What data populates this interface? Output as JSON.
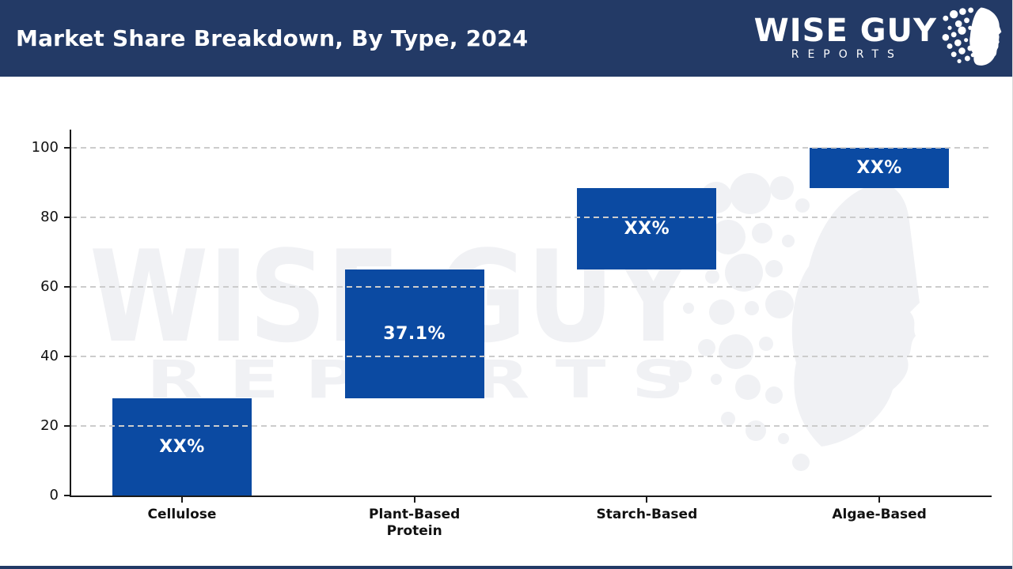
{
  "header": {
    "title": "Market Share Breakdown, By Type, 2024",
    "bg_color": "#233A66",
    "logo": {
      "line1": "WISE GUY",
      "line2": "REPORTS"
    }
  },
  "watermark": {
    "line1": "WISE GUY",
    "line2": "R E P O R T S",
    "color": "#f0f1f4"
  },
  "chart_data": {
    "type": "bar",
    "subtype": "waterfall",
    "title": "Market Share Breakdown, By Type, 2024",
    "categories": [
      "Cellulose",
      "Plant-Based\nProtein",
      "Starch-Based",
      "Algae-Based"
    ],
    "segments": [
      {
        "category": "Cellulose",
        "start": 0,
        "end": 28.0,
        "value_label": "XX%"
      },
      {
        "category": "Plant-Based Protein",
        "start": 28.0,
        "end": 65.1,
        "value_label": "37.1%"
      },
      {
        "category": "Starch-Based",
        "start": 65.1,
        "end": 88.3,
        "value_label": "XX%"
      },
      {
        "category": "Algae-Based",
        "start": 88.3,
        "end": 100.0,
        "value_label": "XX%"
      }
    ],
    "xlabel": "",
    "ylabel": "",
    "yticks": [
      0,
      20,
      40,
      60,
      80,
      100
    ],
    "ylim": [
      0,
      105
    ],
    "grid": "horizontal dashed, drawn over bars",
    "legend": "none",
    "bar_color": "#0B4AA2",
    "gridline_color": "#cccccc",
    "axis_color": "#1a1a1a"
  }
}
